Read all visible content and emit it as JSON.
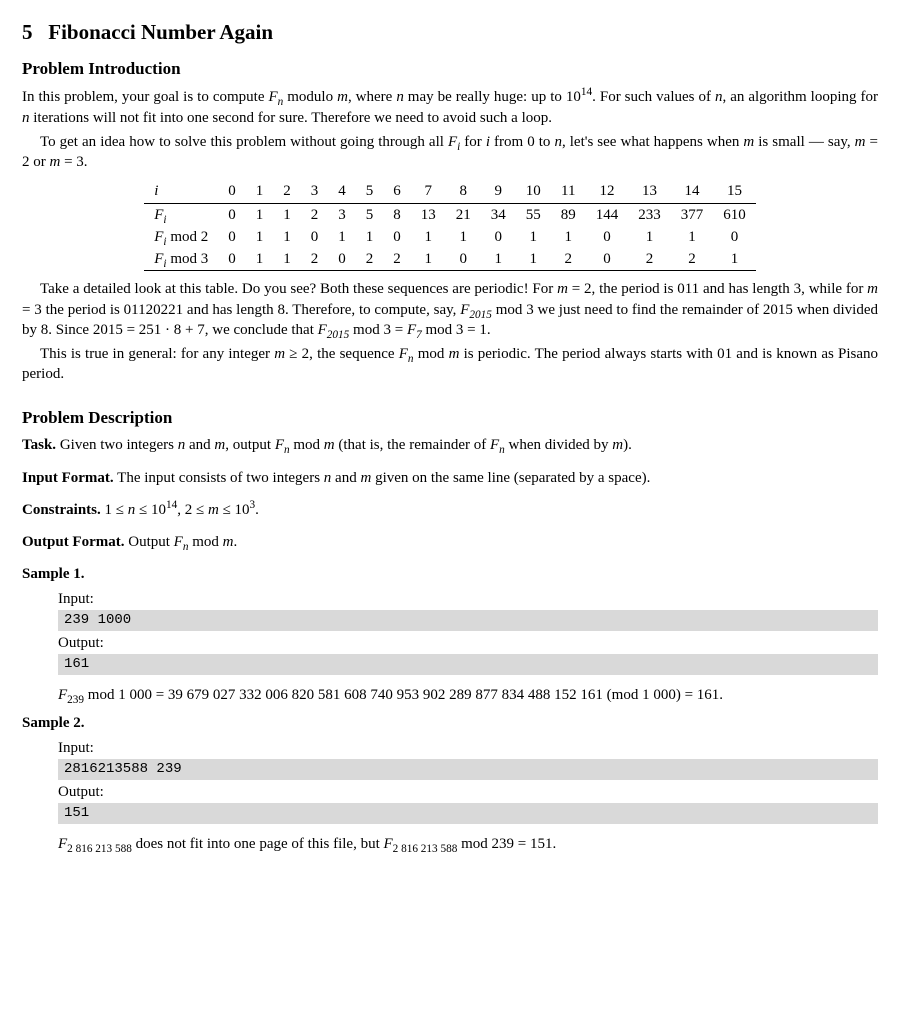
{
  "section": {
    "number": "5",
    "title": "Fibonacci Number Again"
  },
  "intro": {
    "heading": "Problem Introduction",
    "p1a": "In this problem, your goal is to compute ",
    "p1b": " modulo ",
    "p1c": ", where ",
    "p1d": " may be really huge: up to 10",
    "p1e": ". For such values of ",
    "p1f": ", an algorithm looping for ",
    "p1g": " iterations will not fit into one second for sure. Therefore we need to avoid such a loop.",
    "p2a": "To get an idea how to solve this problem without going through all ",
    "p2b": " for ",
    "p2c": " from 0 to ",
    "p2d": ", let's see what happens when ",
    "p2e": " is small — say, ",
    "p2f": " = 2 or ",
    "p2g": " = 3."
  },
  "table": {
    "header_label": "i",
    "indices": [
      "0",
      "1",
      "2",
      "3",
      "4",
      "5",
      "6",
      "7",
      "8",
      "9",
      "10",
      "11",
      "12",
      "13",
      "14",
      "15"
    ],
    "row1_label_a": "F",
    "row1_label_b": "i",
    "row1": [
      "0",
      "1",
      "1",
      "2",
      "3",
      "5",
      "8",
      "13",
      "21",
      "34",
      "55",
      "89",
      "144",
      "233",
      "377",
      "610"
    ],
    "row2_label_a": "F",
    "row2_label_b": "i",
    "row2_label_c": " mod 2",
    "row2": [
      "0",
      "1",
      "1",
      "0",
      "1",
      "1",
      "0",
      "1",
      "1",
      "0",
      "1",
      "1",
      "0",
      "1",
      "1",
      "0"
    ],
    "row3_label_a": "F",
    "row3_label_b": "i",
    "row3_label_c": " mod 3",
    "row3": [
      "0",
      "1",
      "1",
      "2",
      "0",
      "2",
      "2",
      "1",
      "0",
      "1",
      "1",
      "2",
      "0",
      "2",
      "2",
      "1"
    ]
  },
  "after": {
    "p3a": "Take a detailed look at this table. Do you see? Both these sequences are periodic! For ",
    "p3b": " = 2, the period is 011 and has length 3, while for ",
    "p3c": " = 3 the period is 01120221 and has length 8. Therefore, to compute, say, ",
    "p3d": " mod 3 we just need to find the remainder of 2015 when divided by 8. Since 2015 = 251 · 8 + 7, we conclude that ",
    "p3e": " mod 3 = ",
    "p3f": " mod 3 = 1.",
    "p4a": "This is true in general: for any integer ",
    "p4b": " ≥ 2, the sequence ",
    "p4c": " mod ",
    "p4d": " is periodic. The period always starts with 01 and is known as Pisano period."
  },
  "desc": {
    "heading": "Problem Description",
    "task_label": "Task.",
    "task_a": " Given two integers ",
    "task_b": " and ",
    "task_c": ", output ",
    "task_d": " mod ",
    "task_e": " (that is, the remainder of ",
    "task_f": " when divided by ",
    "task_g": ").",
    "inputf_label": "Input Format.",
    "inputf_a": " The input consists of two integers ",
    "inputf_b": " and ",
    "inputf_c": " given on the same line (separated by a space).",
    "constr_label": "Constraints.",
    "constr_a": " 1 ≤ ",
    "constr_b": " ≤ 10",
    "constr_c": ", 2 ≤ ",
    "constr_d": " ≤ 10",
    "constr_e": ".",
    "outf_label": "Output Format.",
    "outf_a": " Output ",
    "outf_b": " mod ",
    "outf_c": "."
  },
  "sample1": {
    "label": "Sample 1.",
    "input_label": "Input:",
    "input_val": "239 1000",
    "output_label": "Output:",
    "output_val": "161",
    "explain_a": "F",
    "explain_b": "239",
    "explain_c": " mod 1 000 = 39 679 027 332 006 820 581 608 740 953 902 289 877 834 488 152 161  (mod 1 000) = 161."
  },
  "sample2": {
    "label": "Sample 2.",
    "input_label": "Input:",
    "input_val": "2816213588 239",
    "output_label": "Output:",
    "output_val": "151",
    "explain_a": "F",
    "explain_b": "2 816 213 588",
    "explain_c": " does not fit into one page of this file, but ",
    "explain_d": "F",
    "explain_e": "2 816 213 588",
    "explain_f": " mod 239 = 151."
  },
  "sym": {
    "Fn": "F",
    "n": "n",
    "m": "m",
    "i": "i",
    "F2015": "2015",
    "F7": "7",
    "exp14": "14",
    "exp3": "3"
  }
}
